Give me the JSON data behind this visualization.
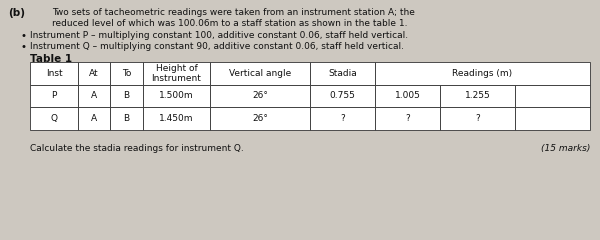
{
  "title_prefix": "(b)",
  "para_line1": "Two sets of tacheometric readings were taken from an instrument station A; the",
  "para_line2": "reduced level of which was 100.06m to a staff station as shown in the table 1.",
  "bullet1": "Instrument P – multiplying constant 100, additive constant 0.06, staff held vertical.",
  "bullet2": "Instrument Q – multiplying constant 90, additive constant 0.06, staff held vertical.",
  "table_title": "Table 1",
  "table_headers": [
    "Inst",
    "At",
    "To",
    "Height of\nInstrument",
    "Vertical angle",
    "Stadia",
    "Readings (m)"
  ],
  "row_p": [
    "P",
    "A",
    "B",
    "1.500m",
    "26°",
    "0.755",
    "1.005",
    "1.255"
  ],
  "row_q": [
    "Q",
    "A",
    "B",
    "1.450m",
    "26°",
    "?",
    "?",
    "?"
  ],
  "footer_left": "Calculate the stadia readings for instrument Q.",
  "footer_right": "(15 marks)",
  "bg_color": "#cdc8c0",
  "text_color": "#111111",
  "fs_main": 6.5,
  "fs_bold": 7.5,
  "fs_table": 6.5
}
